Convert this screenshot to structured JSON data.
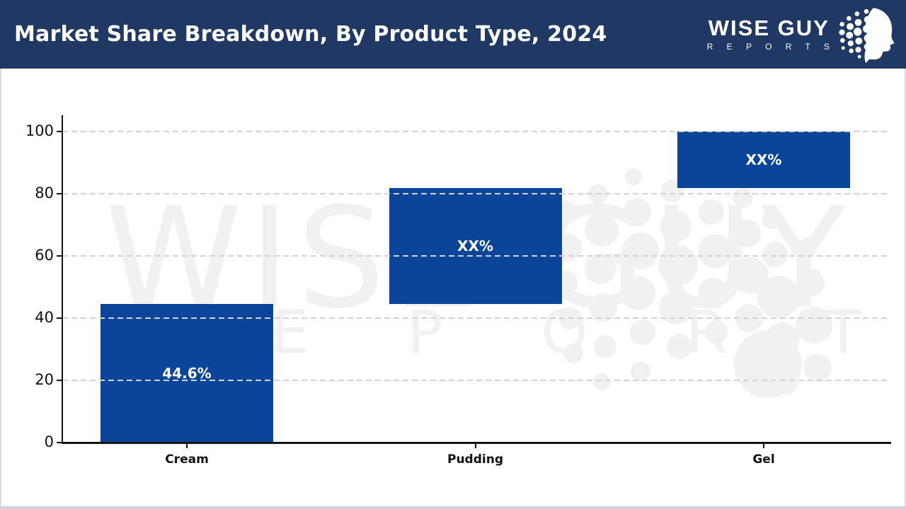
{
  "header": {
    "title": "Market Share Breakdown, By Product Type, 2024",
    "logo": {
      "line1": "WISE GUY",
      "line2": "R E P O R T S"
    }
  },
  "watermark": {
    "line1": "WISE GUY",
    "line2": "R E P O R T S"
  },
  "colors": {
    "header_bg": "#1f3864",
    "bar": "#0b4599",
    "bar_label": "#ffffff",
    "axis": "#151515",
    "grid": "#d2d2d2",
    "watermark": "#f1f1f1",
    "bottom_strip": "#ccd4dc"
  },
  "chart_data": {
    "type": "bar",
    "subtype": "waterfall",
    "title": "Market Share Breakdown, By Product Type, 2024",
    "categories": [
      "Cream",
      "Pudding",
      "Gel"
    ],
    "segments": [
      {
        "category": "Cream",
        "start": 0,
        "end": 44.6,
        "label": "44.6%"
      },
      {
        "category": "Pudding",
        "start": 44.6,
        "end": 81.8,
        "label": "XX%"
      },
      {
        "category": "Gel",
        "start": 81.8,
        "end": 100,
        "label": "XX%"
      }
    ],
    "xlabel": "",
    "ylabel": "",
    "ylim": [
      0,
      105
    ],
    "yticks": [
      0,
      20,
      40,
      60,
      80,
      100
    ],
    "grid": "horizontal-dashed",
    "legend": "none"
  }
}
